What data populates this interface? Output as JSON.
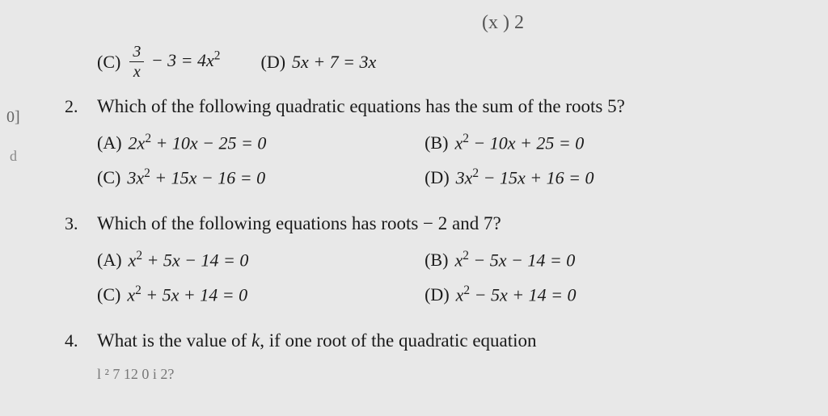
{
  "topPartial": "(x     )    2",
  "marginMark": "0]",
  "q1": {
    "optC": {
      "label": "(C)",
      "fracNum": "3",
      "fracDen": "x",
      "rest": "− 3 = 4x²"
    },
    "optD": {
      "label": "(D)",
      "math": "5x + 7 = 3x"
    }
  },
  "q2": {
    "num": "2.",
    "text": "Which of the following quadratic equations has the sum of the roots 5?",
    "optA": {
      "label": "(A)",
      "math": "2x² + 10x − 25 = 0"
    },
    "optB": {
      "label": "(B)",
      "math": "x² − 10x + 25 = 0"
    },
    "optC": {
      "label": "(C)",
      "math": "3x² + 15x − 16 = 0"
    },
    "optD": {
      "label": "(D)",
      "math": "3x² − 15x + 16 = 0"
    }
  },
  "q3": {
    "num": "3.",
    "text": "Which of the following equations has roots − 2 and 7?",
    "optA": {
      "label": "(A)",
      "math": "x² + 5x − 14 = 0"
    },
    "optB": {
      "label": "(B)",
      "math": "x² − 5x − 14 = 0"
    },
    "optC": {
      "label": "(C)",
      "math": "x² + 5x + 14 = 0"
    },
    "optD": {
      "label": "(D)",
      "math": "x² − 5x + 14 = 0"
    }
  },
  "q4": {
    "num": "4.",
    "text": "What is the value of k, if one root of the quadratic equation"
  },
  "bottomPartial": "l ²     7       12     0 i  2?"
}
